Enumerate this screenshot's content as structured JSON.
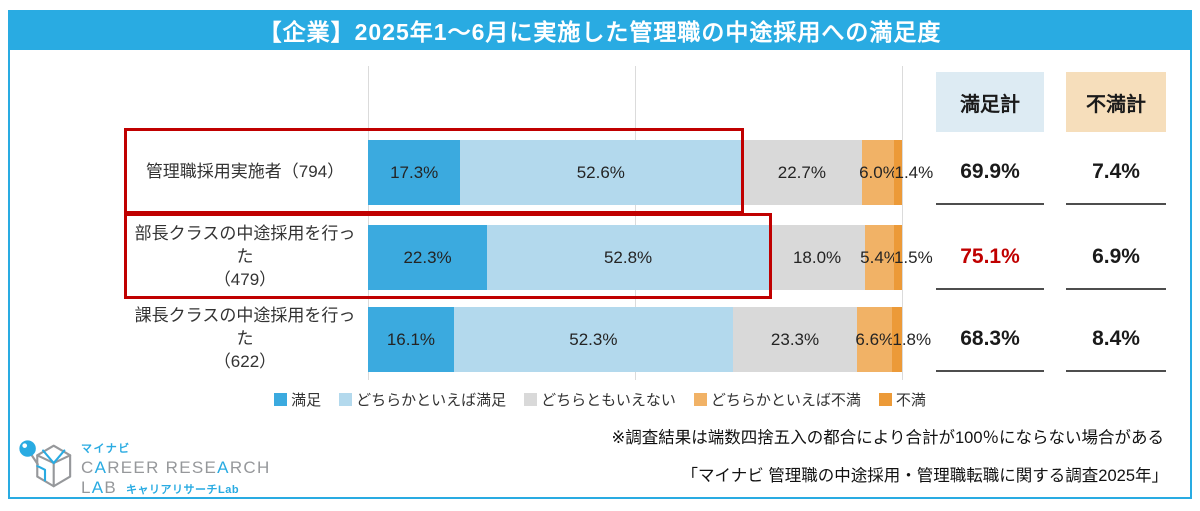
{
  "title": "【企業】2025年1～6月に実施した管理職の中途採用への満足度",
  "summary": {
    "satisfied_header": "満足計",
    "dissatisfied_header": "不満計",
    "satisfied_header_bg": "#DDEBF3",
    "dissatisfied_header_bg": "#F6DEBB"
  },
  "chart_data": {
    "type": "bar",
    "stacked": true,
    "orientation": "horizontal",
    "unit": "%",
    "xlim": [
      0,
      100
    ],
    "gridlines_pct": [
      0,
      50,
      100
    ],
    "legend_position": "bottom",
    "legend": [
      {
        "label": "満足",
        "color": "#3BAADF"
      },
      {
        "label": "どちらかといえば満足",
        "color": "#B3D9ED"
      },
      {
        "label": "どちらともいえない",
        "color": "#D9D9D9"
      },
      {
        "label": "どちらかといえば不満",
        "color": "#F1B266"
      },
      {
        "label": "不満",
        "color": "#EC9A38"
      }
    ],
    "rows": [
      {
        "label_lines": [
          "管理職採用実施者（794）"
        ],
        "values": [
          17.3,
          52.6,
          22.7,
          6.0,
          1.4
        ],
        "value_labels": [
          "17.3%",
          "52.6%",
          "22.7%",
          "6.0%",
          "1.4%"
        ],
        "satisfied_total": "69.9%",
        "dissatisfied_total": "7.4%",
        "satisfied_color": "#1a1a1a",
        "highlighted": true
      },
      {
        "label_lines": [
          "部長クラスの中途採用を行った",
          "（479）"
        ],
        "values": [
          22.3,
          52.8,
          18.0,
          5.4,
          1.5
        ],
        "value_labels": [
          "22.3%",
          "52.8%",
          "18.0%",
          "5.4%",
          "1.5%"
        ],
        "satisfied_total": "75.1%",
        "dissatisfied_total": "6.9%",
        "satisfied_color": "#C00000",
        "highlighted": true
      },
      {
        "label_lines": [
          "課長クラスの中途採用を行った",
          "（622）"
        ],
        "values": [
          16.1,
          52.3,
          23.3,
          6.6,
          1.8
        ],
        "value_labels": [
          "16.1%",
          "52.3%",
          "23.3%",
          "6.6%",
          "1.8%"
        ],
        "satisfied_total": "68.3%",
        "dissatisfied_total": "8.4%",
        "satisfied_color": "#1a1a1a",
        "highlighted": false
      }
    ]
  },
  "notes": {
    "rounding_note": "※調査結果は端数四捨五入の都合により合計が100％にならない場合がある",
    "source": "「マイナビ 管理職の中途採用・管理職転職に関する調査2025年」"
  },
  "logo": {
    "brand": "マイナビ",
    "line1": "CAREER RESEARCH",
    "line2": "LAB",
    "subtitle": "キャリアリサーチLab"
  },
  "colors": {
    "accent_cyan": "#29ABE2",
    "highlight_red": "#C00000",
    "grid": "#DBDBDB"
  }
}
